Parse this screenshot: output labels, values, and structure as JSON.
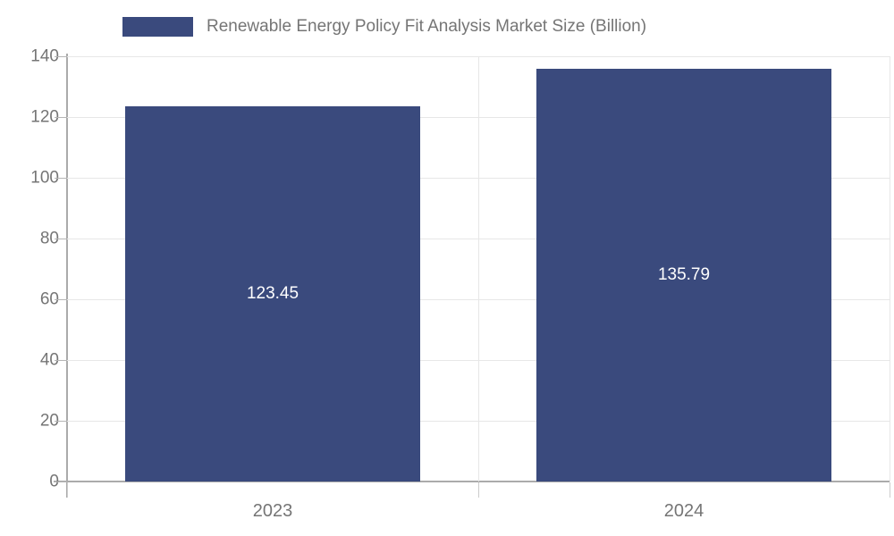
{
  "chart_data": {
    "type": "bar",
    "title": "Renewable Energy Policy Fit Analysis Market Size (Billion)",
    "categories": [
      "2023",
      "2024"
    ],
    "values": [
      123.45,
      135.79
    ],
    "value_labels": [
      "123.45",
      "135.79"
    ],
    "yticks": [
      0,
      20,
      40,
      60,
      80,
      100,
      120,
      140
    ],
    "ylim": [
      0,
      140
    ],
    "xlabel": "",
    "ylabel": "",
    "legend_position": "top-left",
    "grid": true,
    "colors": {
      "bar": "#3a4a7d",
      "bar_value_text": "#ffffff",
      "axis": "#ababab",
      "grid": "#e7e7e7",
      "tick_text": "#757575",
      "title_text": "#757575",
      "background": "#ffffff"
    }
  }
}
